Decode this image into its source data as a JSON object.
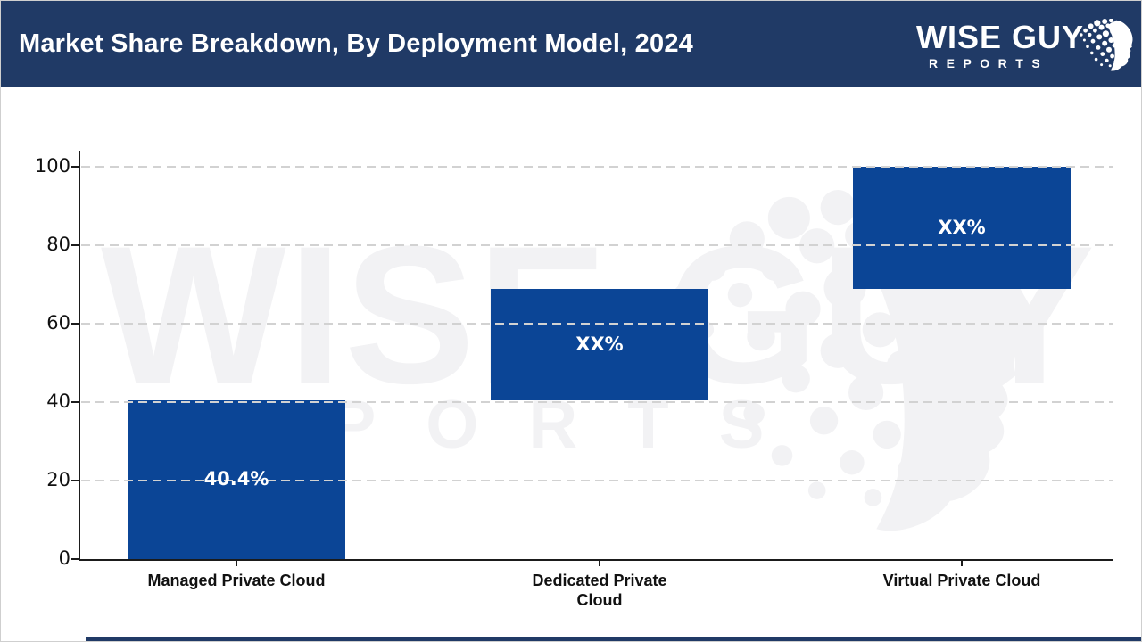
{
  "header": {
    "title": "Market Share Breakdown, By Deployment Model, 2024",
    "logo": {
      "line1": "WISE GUY",
      "line2": "REPORTS"
    }
  },
  "watermark": {
    "line1": "WISE GUY",
    "line2": "REPORTS"
  },
  "colors": {
    "headerBg": "#203a66",
    "bar": "#0b4596",
    "barLabel": "#ffffff",
    "grid": "#d2d2d2",
    "axis": "#1b1b1b",
    "watermark": "#f2f2f4",
    "footer": "#203a66"
  },
  "chart_data": {
    "type": "bar",
    "variant": "floating-waterfall",
    "title": "Market Share Breakdown, By Deployment Model, 2024",
    "categories": [
      "Managed Private Cloud",
      "Dedicated Private Cloud",
      "Virtual Private Cloud"
    ],
    "bars": [
      {
        "category": "Managed Private Cloud",
        "value_label": "40.4%",
        "start": 0,
        "end": 40.4
      },
      {
        "category": "Dedicated Private Cloud",
        "value_label": "XX%",
        "start": 40.4,
        "end": 68.8
      },
      {
        "category": "Virtual Private Cloud",
        "value_label": "XX%",
        "start": 68.8,
        "end": 100
      }
    ],
    "yticks": [
      0,
      20,
      40,
      60,
      80,
      100
    ],
    "ylim": [
      0,
      100
    ],
    "xlabel": "",
    "ylabel": "",
    "grid": "dashed horizontal, drawn above bars",
    "legend": "none"
  }
}
